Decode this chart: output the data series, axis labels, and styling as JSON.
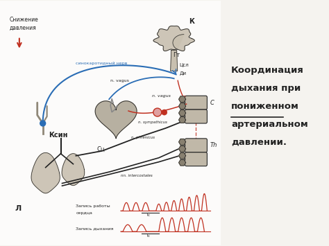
{
  "title_lines": [
    "Координация",
    "дыхания при",
    "пониженном",
    "артериальном",
    "давлении."
  ],
  "underline_line": 2,
  "bg_color": "#f5f3ef",
  "blue_color": "#2a6db5",
  "red_color": "#c03020",
  "dark_color": "#222222",
  "gray_fill": "#b8b0a0",
  "gray_fill2": "#c8c0b0",
  "spine_fill": "#c0b8a8",
  "label_Ксин": "Ксин",
  "label_К": "К",
  "label_Гт": "Гт",
  "label_Цсл": "Цсл",
  "label_Ди": "Ди",
  "label_С": "C",
  "label_Th": "Th",
  "label_Сц": "Сц",
  "label_Л": "Л",
  "label_snizh1": "Снижение",
  "label_snizh2": "давления",
  "label_sino": "синокаротидный нерв",
  "label_vagus1": "n. vagus",
  "label_vagus2": "n. vagus",
  "label_sympathicus": "n. sympathicus",
  "label_phrenicus": "n. phrenicus",
  "label_intercostales": "nn. intercostales",
  "label_zapis_serdca1": "Запись работы",
  "label_zapis_serdca2": "сердца",
  "label_zapis_dyh": "Запись дыхания"
}
